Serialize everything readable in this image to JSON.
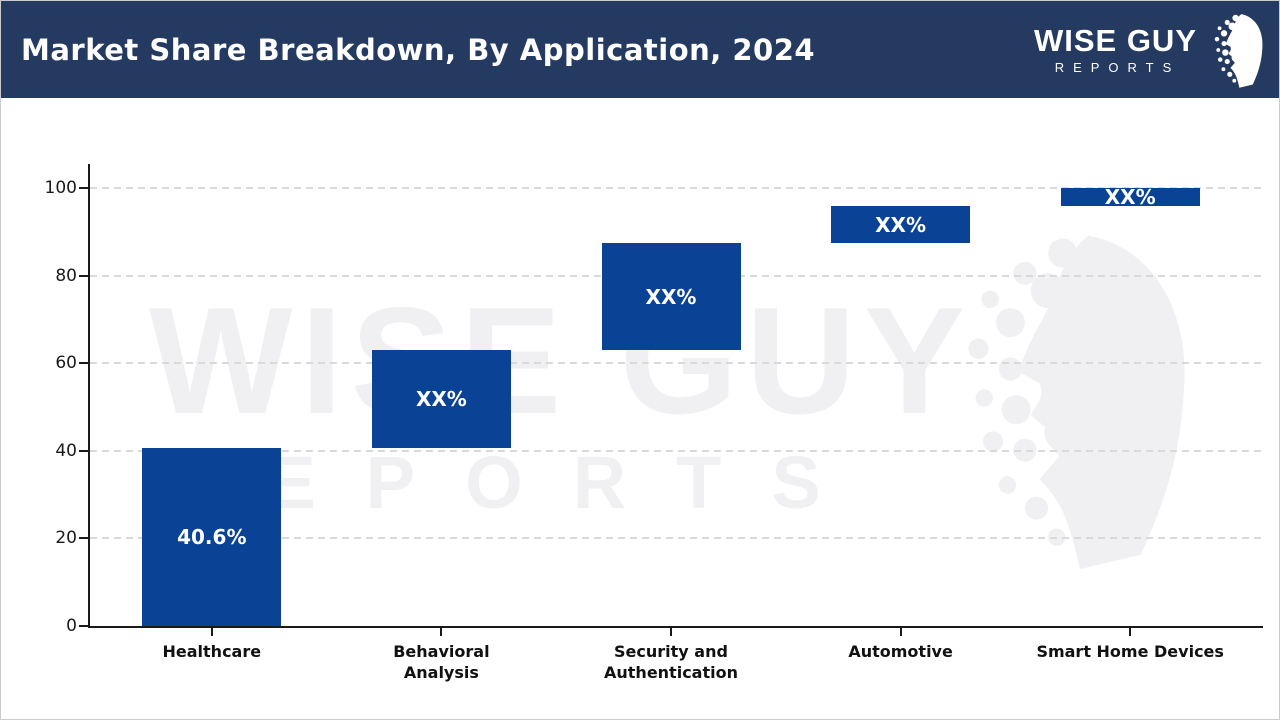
{
  "header": {
    "title": "Market Share Breakdown, By Application, 2024",
    "bg_color": "#243a60",
    "logo": {
      "line1": "WISE GUY",
      "line2": "REPORTS"
    }
  },
  "watermark": {
    "line1": "WISE GUY",
    "line2": "REPORTS"
  },
  "chart_data": {
    "type": "bar",
    "variant": "waterfall",
    "title": "Market Share Breakdown, By Application, 2024",
    "xlabel": "",
    "ylabel": "",
    "ylim": [
      0,
      105.5
    ],
    "yticks": [
      0,
      20,
      40,
      60,
      80,
      100
    ],
    "grid": "horizontal-dashed",
    "legend": false,
    "bar_color": "#0a4396",
    "bar_label_color": "#ffffff",
    "categories": [
      "Healthcare",
      "Behavioral Analysis",
      "Security and Authentication",
      "Automotive",
      "Smart Home Devices"
    ],
    "category_label_lines": [
      [
        "Healthcare"
      ],
      [
        "Behavioral",
        "Analysis"
      ],
      [
        "Security and",
        "Authentication"
      ],
      [
        "Automotive"
      ],
      [
        "Smart Home Devices"
      ]
    ],
    "segments": [
      {
        "category": "Healthcare",
        "start": 0,
        "end": 40.6,
        "label": "40.6%"
      },
      {
        "category": "Behavioral Analysis",
        "start": 40.6,
        "end": 63,
        "label": "XX%"
      },
      {
        "category": "Security and Authentication",
        "start": 63,
        "end": 87.4,
        "label": "XX%"
      },
      {
        "category": "Automotive",
        "start": 87.4,
        "end": 95.9,
        "label": "XX%"
      },
      {
        "category": "Smart Home Devices",
        "start": 95.9,
        "end": 100,
        "label": "XX%"
      }
    ]
  }
}
